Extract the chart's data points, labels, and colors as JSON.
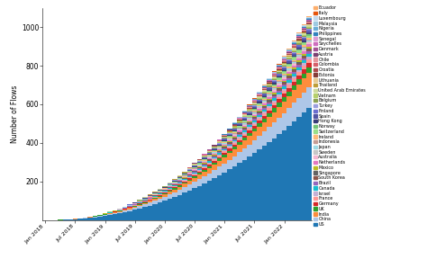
{
  "ylabel": "Number of Flows",
  "countries": [
    "US",
    "China",
    "India",
    "UK",
    "Germany",
    "France",
    "Israel",
    "Canada",
    "Brazil",
    "South Korea",
    "Singapore",
    "Mexico",
    "Netherlands",
    "Australia",
    "Sweden",
    "Japan",
    "Indonesia",
    "Ireland",
    "Switzerland",
    "Norway",
    "Hong Kong",
    "Spain",
    "Finland",
    "Turkey",
    "Belgium",
    "Vietnam",
    "United Arab Emirates",
    "Thailand",
    "Lithuania",
    "Estonia",
    "Croatia",
    "Colombia",
    "Chile",
    "Austria",
    "Denmark",
    "Seychelles",
    "Senegal",
    "Philippines",
    "Nigeria",
    "Malaysia",
    "Luxembourg",
    "Italy",
    "Ecuador"
  ],
  "colors": [
    "#1f77b4",
    "#aec7e8",
    "#fd8d3c",
    "#2ca02c",
    "#d62728",
    "#ff9896",
    "#c5b0d5",
    "#17becf",
    "#9467bd",
    "#8c564b",
    "#636363",
    "#bcbd22",
    "#e377c2",
    "#f7b6d2",
    "#c7c7c7",
    "#9edae5",
    "#c49c94",
    "#ffbb78",
    "#98df8a",
    "#74c476",
    "#393b79",
    "#5254a3",
    "#6b6ecf",
    "#9c9ede",
    "#8ca252",
    "#b5cf6b",
    "#cedb9c",
    "#bd9e39",
    "#e7cb94",
    "#843c39",
    "#ad494a",
    "#d6616b",
    "#e7969c",
    "#7b4173",
    "#a55194",
    "#ce6dbd",
    "#de9ed6",
    "#3182bd",
    "#6baed6",
    "#9ecae1",
    "#c6dbef",
    "#e6550d",
    "#fdae6b"
  ],
  "n_months": 54,
  "start_year": 2018,
  "start_month": 1,
  "ylim": [
    0,
    1100
  ],
  "yticks": [
    200,
    400,
    600,
    800,
    1000
  ],
  "background_color": "#ffffff",
  "final_values": [
    580,
    110,
    75,
    28,
    22,
    18,
    14,
    16,
    11,
    9,
    7,
    9,
    11,
    9,
    7,
    6,
    5,
    7,
    11,
    6,
    8,
    9,
    7,
    5,
    7,
    5,
    6,
    4,
    3,
    3,
    3,
    4,
    4,
    3,
    3,
    2,
    2,
    3,
    3,
    4,
    2,
    2,
    3
  ],
  "start_months": [
    0,
    0,
    1,
    2,
    3,
    4,
    5,
    5,
    6,
    7,
    8,
    8,
    9,
    9,
    10,
    11,
    12,
    12,
    13,
    13,
    14,
    15,
    16,
    17,
    18,
    19,
    20,
    21,
    24,
    25,
    26,
    27,
    28,
    29,
    30,
    32,
    33,
    34,
    35,
    36,
    38,
    39,
    40
  ]
}
